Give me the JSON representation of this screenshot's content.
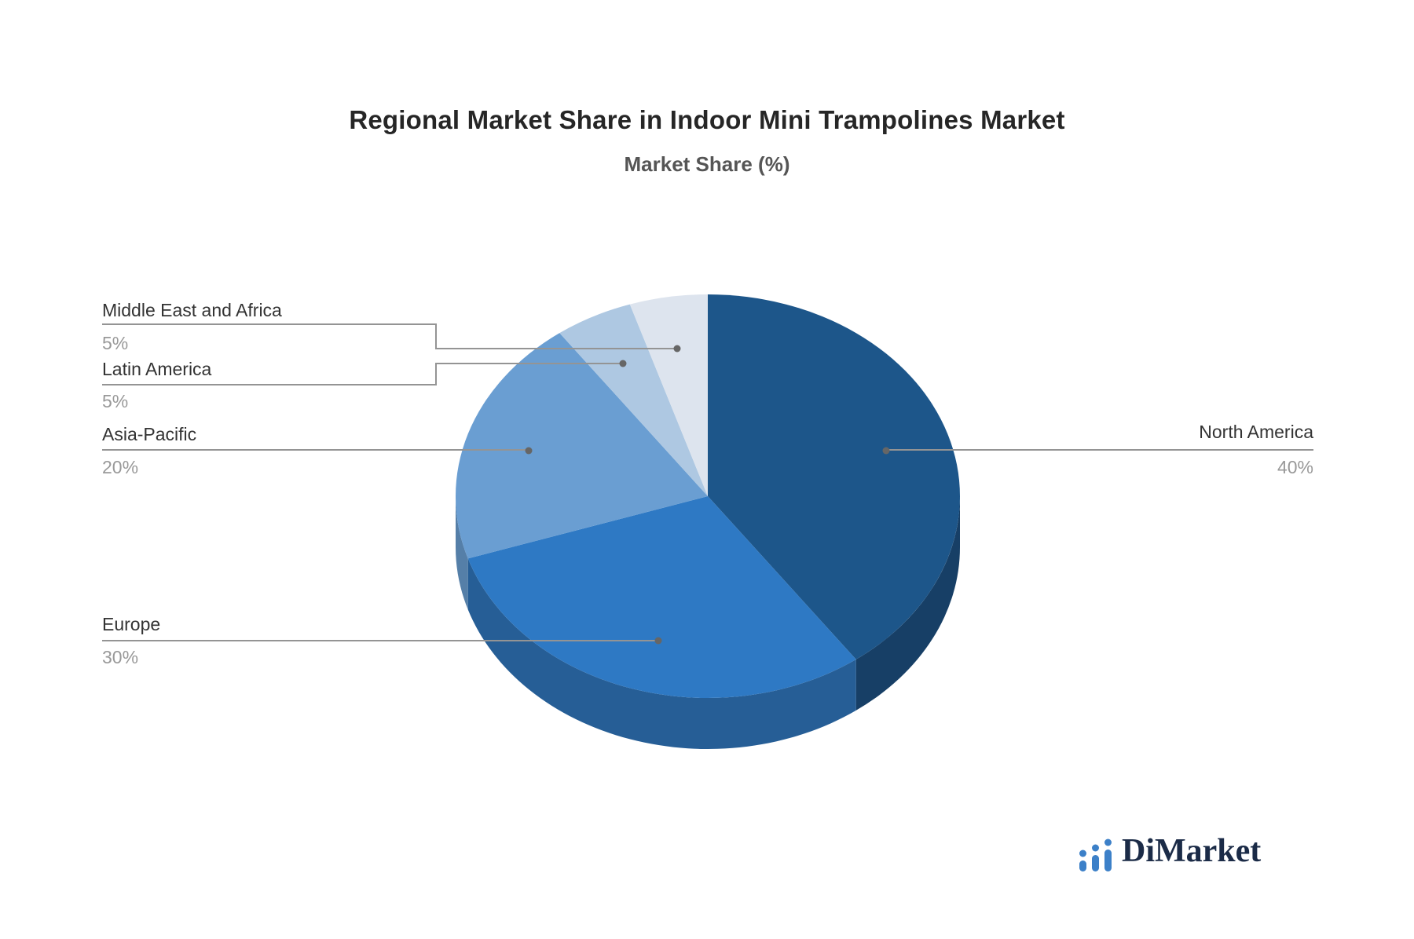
{
  "header": {
    "title": "Regional Market Share in Indoor Mini Trampolines Market",
    "subtitle": "Market Share (%)"
  },
  "chart_data": {
    "type": "pie",
    "title": "Regional Market Share in Indoor Mini Trampolines Market",
    "subtitle": "Market Share (%)",
    "unit": "%",
    "effect": "3d",
    "start_angle_deg": 0,
    "direction": "clockwise",
    "legend": "none",
    "series": [
      {
        "name": "North America",
        "value": 40,
        "label": "40%",
        "color": "#1d568a",
        "side_color": "#173f66"
      },
      {
        "name": "Europe",
        "value": 30,
        "label": "30%",
        "color": "#2e79c4",
        "side_color": "#265e96"
      },
      {
        "name": "Asia-Pacific",
        "value": 20,
        "label": "20%",
        "color": "#6a9ed2",
        "side_color": "#557fa8"
      },
      {
        "name": "Latin America",
        "value": 5,
        "label": "5%",
        "color": "#aec8e2",
        "side_color": "#8ba0b5"
      },
      {
        "name": "Middle East and Africa",
        "value": 5,
        "label": "5%",
        "color": "#dde4ee",
        "side_color": "#b1b6be"
      }
    ],
    "labels_style": {
      "name_color": "#333333",
      "pct_color": "#999999",
      "line_color": "#949494",
      "dot_color": "#666666"
    }
  },
  "branding": {
    "logo_text": "DiMarket",
    "logo_color": "#1b2b47",
    "icon_color": "#3c80c8"
  }
}
